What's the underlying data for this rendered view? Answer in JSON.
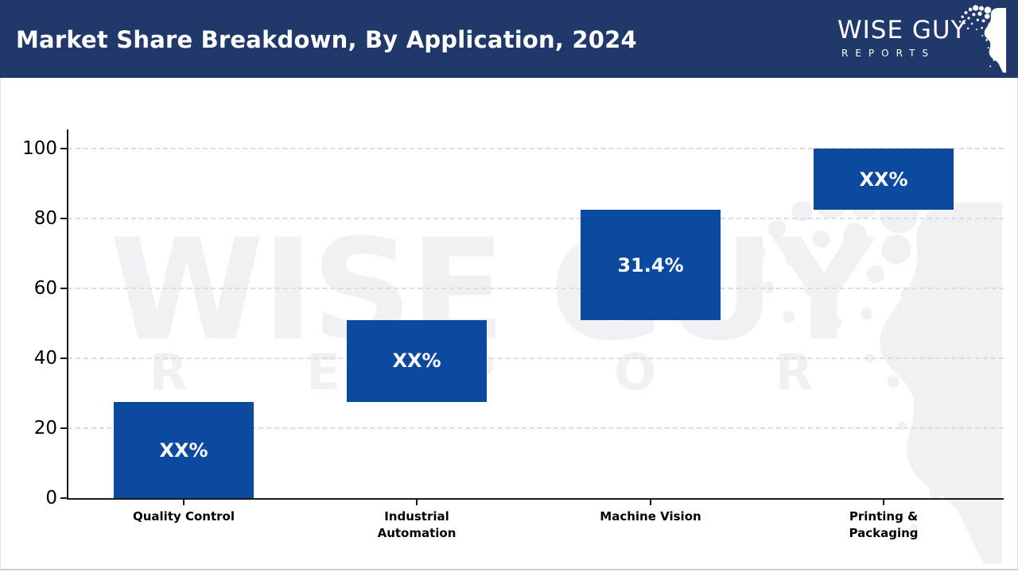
{
  "header": {
    "title": "Market Share Breakdown, By Application, 2024",
    "logo_line1": "WISE GUY",
    "logo_line2": "REPORTS"
  },
  "watermark": {
    "line1": "WISE GUY",
    "line2": "R E P O R T S"
  },
  "chart_data": {
    "type": "bar",
    "variant": "waterfall-floating-segments",
    "title": "Market Share Breakdown, By Application, 2024",
    "xlabel": "",
    "ylabel": "",
    "ylim": [
      0,
      100
    ],
    "yticks": [
      0,
      20,
      40,
      60,
      80,
      100
    ],
    "grid": "horizontal-dashed",
    "legend_position": "none",
    "bar_color": "#0b4a9e",
    "bar_label_color": "#ffffff",
    "bars": [
      {
        "category": "Quality Control",
        "start": 0,
        "end": 27.5,
        "value_label": "XX%"
      },
      {
        "category": "Industrial\nAutomation",
        "start": 27.5,
        "end": 51,
        "value_label": "XX%"
      },
      {
        "category": "Machine Vision",
        "start": 51,
        "end": 82.4,
        "value_label": "31.4%"
      },
      {
        "category": "Printing &\nPackaging",
        "start": 82.4,
        "end": 100,
        "value_label": "XX%"
      }
    ]
  },
  "colors": {
    "header_bg": "#20396a",
    "bar": "#0b4a9e",
    "grid": "#dddddd",
    "axis": "#1a1a1a",
    "watermark": "#f1f1f3"
  }
}
